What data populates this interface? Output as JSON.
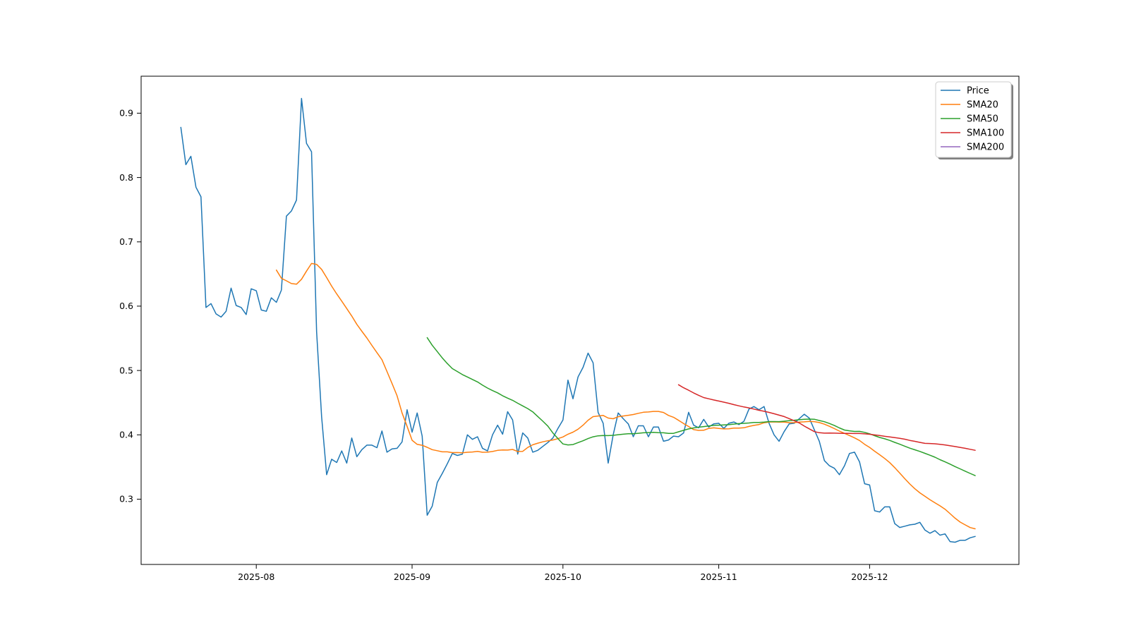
{
  "figure": {
    "background": "#ffffff",
    "plot_bg": "#ffffff",
    "border_color": "#000000",
    "tick_color": "#000000",
    "legend": {
      "border_color": "#cccccc",
      "shadow_color": "#7f7f7f",
      "face_color": "#ffffff",
      "entries": [
        {
          "label": "Price",
          "color": "#1f77b4"
        },
        {
          "label": "SMA20",
          "color": "#ff7f0e"
        },
        {
          "label": "SMA50",
          "color": "#2ca02c"
        },
        {
          "label": "SMA100",
          "color": "#d62728"
        },
        {
          "label": "SMA200",
          "color": "#9467bd"
        }
      ]
    }
  },
  "chart_data": {
    "type": "line",
    "title": "",
    "xlabel": "",
    "ylabel": "",
    "grid": false,
    "legend_position": "upper right",
    "x_start_date": "2025-07-17",
    "x_frequency": "daily",
    "x_tick_labels": [
      "2025-08",
      "2025-09",
      "2025-10",
      "2025-11",
      "2025-12"
    ],
    "x_tick_indices": [
      15,
      46,
      76,
      107,
      137
    ],
    "y_ticks": [
      0.3,
      0.4,
      0.5,
      0.6,
      0.7,
      0.8,
      0.9
    ],
    "ylim": [
      0.1985,
      0.9575
    ],
    "xlim_index": [
      -7.9,
      166.7
    ],
    "series": [
      {
        "name": "Price",
        "color": "#1f77b4",
        "values": [
          0.878,
          0.82,
          0.833,
          0.785,
          0.77,
          0.598,
          0.604,
          0.588,
          0.583,
          0.592,
          0.628,
          0.601,
          0.598,
          0.587,
          0.627,
          0.624,
          0.594,
          0.592,
          0.613,
          0.606,
          0.625,
          0.74,
          0.748,
          0.765,
          0.923,
          0.853,
          0.84,
          0.56,
          0.428,
          0.338,
          0.362,
          0.357,
          0.375,
          0.356,
          0.395,
          0.366,
          0.377,
          0.384,
          0.384,
          0.38,
          0.406,
          0.373,
          0.378,
          0.379,
          0.389,
          0.439,
          0.404,
          0.434,
          0.398,
          0.275,
          0.289,
          0.326,
          0.34,
          0.355,
          0.371,
          0.368,
          0.37,
          0.4,
          0.393,
          0.397,
          0.379,
          0.375,
          0.4,
          0.415,
          0.401,
          0.436,
          0.423,
          0.37,
          0.403,
          0.395,
          0.373,
          0.376,
          0.382,
          0.388,
          0.395,
          0.41,
          0.423,
          0.485,
          0.456,
          0.49,
          0.505,
          0.527,
          0.512,
          0.435,
          0.418,
          0.356,
          0.4,
          0.434,
          0.425,
          0.417,
          0.397,
          0.414,
          0.414,
          0.397,
          0.412,
          0.412,
          0.39,
          0.392,
          0.398,
          0.397,
          0.403,
          0.435,
          0.415,
          0.411,
          0.424,
          0.412,
          0.417,
          0.418,
          0.41,
          0.418,
          0.42,
          0.416,
          0.421,
          0.44,
          0.444,
          0.439,
          0.444,
          0.418,
          0.4,
          0.39,
          0.405,
          0.417,
          0.418,
          0.425,
          0.432,
          0.426,
          0.408,
          0.39,
          0.36,
          0.352,
          0.348,
          0.338,
          0.352,
          0.371,
          0.373,
          0.358,
          0.324,
          0.322,
          0.282,
          0.28,
          0.288,
          0.288,
          0.262,
          0.256,
          0.258,
          0.26,
          0.261,
          0.264,
          0.252,
          0.247,
          0.251,
          0.244,
          0.246,
          0.234,
          0.233,
          0.236,
          0.236,
          0.24,
          0.242
        ]
      },
      {
        "name": "SMA20",
        "color": "#ff7f0e",
        "derived": "rolling_mean",
        "window": 20,
        "source": "Price"
      },
      {
        "name": "SMA50",
        "color": "#2ca02c",
        "derived": "rolling_mean",
        "window": 50,
        "source": "Price"
      },
      {
        "name": "SMA100",
        "color": "#d62728",
        "derived": "rolling_mean",
        "window": 100,
        "source": "Price"
      },
      {
        "name": "SMA200",
        "color": "#9467bd",
        "derived": "rolling_mean",
        "window": 200,
        "source": "Price"
      }
    ]
  }
}
